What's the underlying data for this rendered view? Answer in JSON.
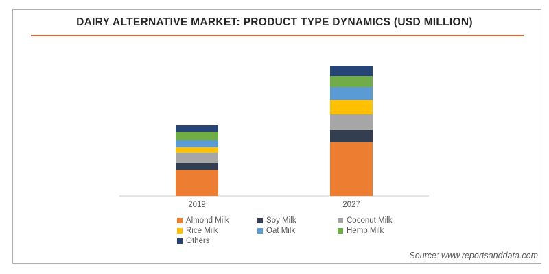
{
  "page": {
    "title": "DAIRY ALTERNATIVE MARKET: PRODUCT TYPE DYNAMICS (USD MILLION)",
    "source": "Source: www.reportsanddata.com",
    "accent_color": "#e8632c",
    "frame_border_color": "#b0b0b0",
    "axis_line_color": "#e6e6e6",
    "text_muted_color": "#595959"
  },
  "chart_data": {
    "type": "bar",
    "stacked": true,
    "title": "DAIRY ALTERNATIVE MARKET: PRODUCT TYPE DYNAMICS (USD MILLION)",
    "categories": [
      "2019",
      "2027"
    ],
    "xlabel": "",
    "ylabel": "",
    "value_axis_labeled": false,
    "units": "USD Million (value axis not shown; values are relative estimates from bar segment heights)",
    "grid": false,
    "legend_position": "bottom",
    "series": [
      {
        "name": "Almond Milk",
        "color": "#ed7d31",
        "values": [
          38,
          78
        ]
      },
      {
        "name": "Soy Milk",
        "color": "#333f50",
        "values": [
          10,
          18
        ]
      },
      {
        "name": "Coconut Milk",
        "color": "#a6a6a6",
        "values": [
          15,
          23
        ]
      },
      {
        "name": "Rice Milk",
        "color": "#ffc000",
        "values": [
          8,
          21
        ]
      },
      {
        "name": "Oat Milk",
        "color": "#5b9bd5",
        "values": [
          10,
          19
        ]
      },
      {
        "name": "Hemp Milk",
        "color": "#70ad47",
        "values": [
          13,
          16
        ]
      },
      {
        "name": "Others",
        "color": "#264478",
        "values": [
          9,
          15
        ]
      }
    ]
  }
}
